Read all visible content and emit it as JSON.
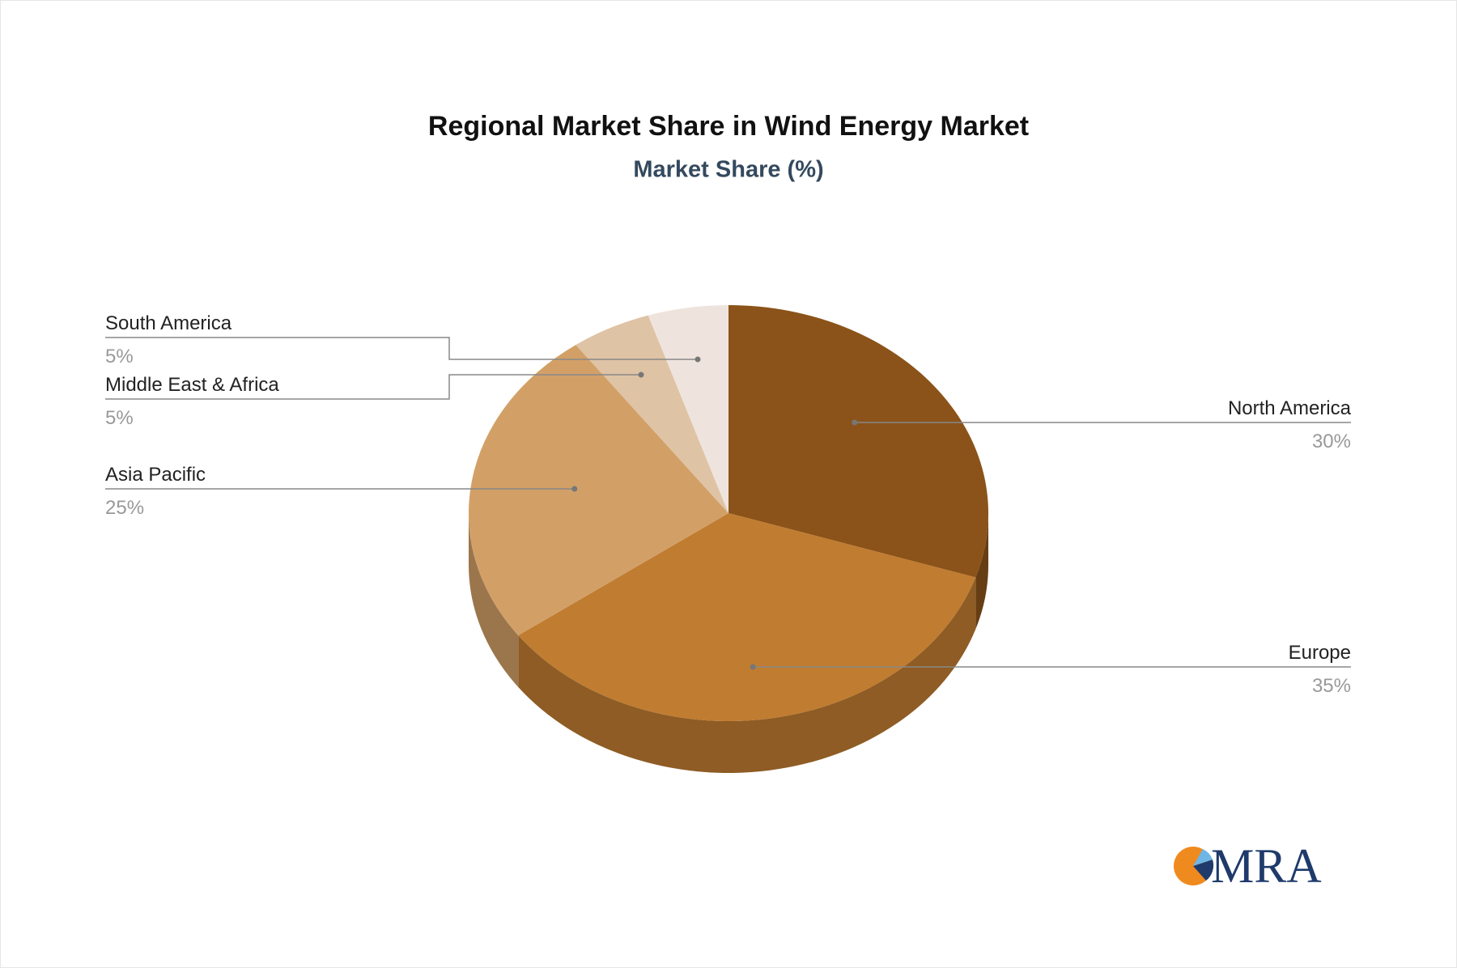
{
  "chart_data": {
    "type": "pie3d",
    "title": "Regional Market Share in Wind Energy Market",
    "subtitle": "Market Share (%)",
    "categories": [
      "North America",
      "Europe",
      "Asia Pacific",
      "Middle East & Africa",
      "South America"
    ],
    "values": [
      30,
      35,
      25,
      5,
      5
    ],
    "value_labels": [
      "30%",
      "35%",
      "25%",
      "5%",
      "5%"
    ],
    "colors": [
      "#8b5319",
      "#c07c30",
      "#d2a067",
      "#dfc3a5",
      "#efe4dd"
    ]
  },
  "logo": "MRA"
}
